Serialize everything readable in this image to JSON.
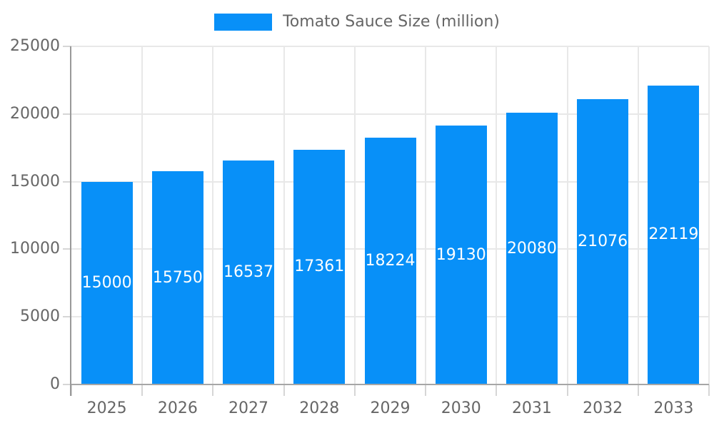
{
  "legend": {
    "label": "Tomato Sauce Size (million)"
  },
  "chart_data": {
    "type": "bar",
    "title": "Tomato Sauce Size (million)",
    "series_name": "Tomato Sauce Size (million)",
    "categories": [
      "2025",
      "2026",
      "2027",
      "2028",
      "2029",
      "2030",
      "2031",
      "2032",
      "2033"
    ],
    "values": [
      15000,
      15750,
      16537,
      17361,
      18224,
      19130,
      20080,
      21076,
      22119
    ],
    "xlabel": "",
    "ylabel": "",
    "ylim": [
      0,
      25000
    ],
    "yticks": [
      0,
      5000,
      10000,
      15000,
      20000,
      25000
    ],
    "grid": true,
    "legend_position": "top-center",
    "value_labels": "inside-center-white",
    "colors": {
      "bar": "#0890f8",
      "axis_text": "#666666",
      "value_text": "#ffffff",
      "axis_line": "#999999",
      "zero_line": "#a6a6a6",
      "gridline": "#e8e8e8",
      "tick": "#d6d6d6"
    }
  }
}
